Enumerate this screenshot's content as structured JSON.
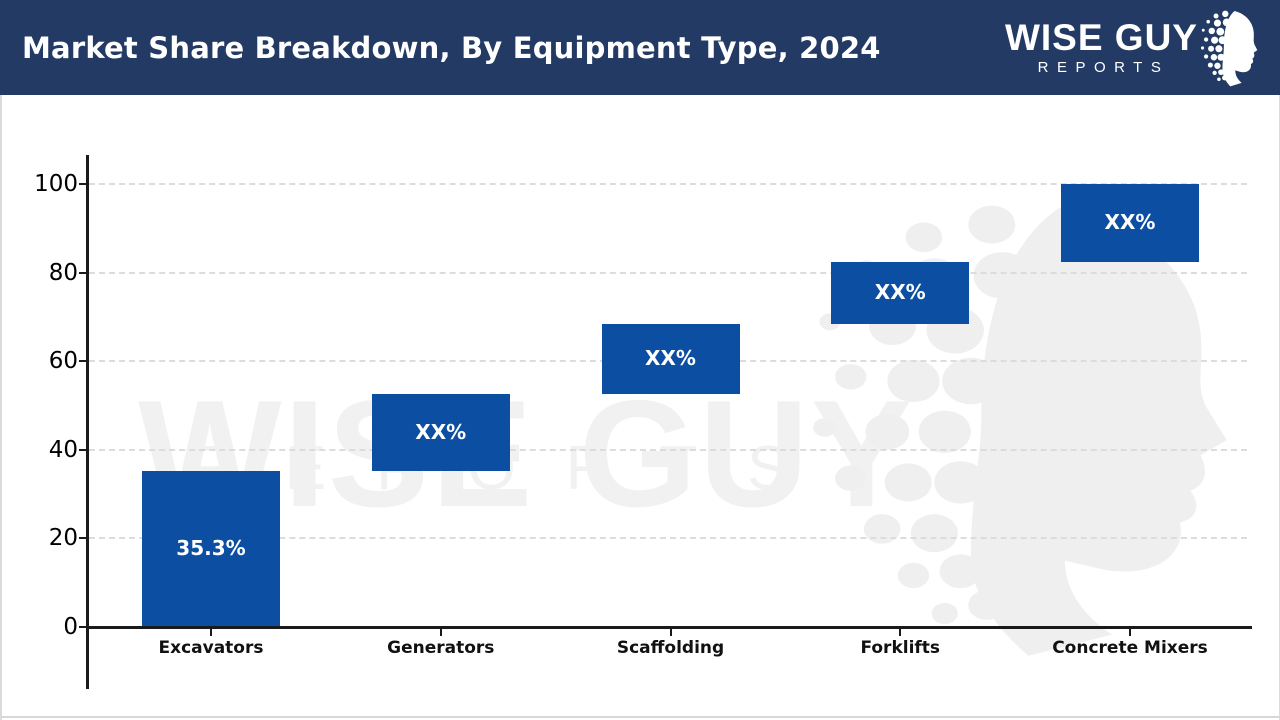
{
  "header": {
    "title": "Market Share Breakdown, By Equipment Type, 2024",
    "brand_line1": "WISE GUY",
    "brand_line2": "REPORTS",
    "bg_color": "#233a64"
  },
  "watermark": {
    "line1": "WISE GUY",
    "line2": "REPORTS",
    "head_icon": "dotted-head-profile"
  },
  "chart_data": {
    "type": "bar",
    "variant": "waterfall",
    "title": "Market Share Breakdown, By Equipment Type, 2024",
    "xlabel": "",
    "ylabel": "",
    "categories": [
      "Excavators",
      "Generators",
      "Scaffolding",
      "Forklifts",
      "Concrete Mixers"
    ],
    "series": [
      {
        "name": "Market share (%)",
        "segments": [
          {
            "category": "Excavators",
            "start": 0,
            "end": 35.3,
            "label": "35.3%"
          },
          {
            "category": "Generators",
            "start": 35.3,
            "end": 52.5,
            "label": "XX%"
          },
          {
            "category": "Scaffolding",
            "start": 52.5,
            "end": 68.5,
            "label": "XX%"
          },
          {
            "category": "Forklifts",
            "start": 68.5,
            "end": 82.5,
            "label": "XX%"
          },
          {
            "category": "Concrete Mixers",
            "start": 82.5,
            "end": 100,
            "label": "XX%"
          }
        ]
      }
    ],
    "ylim": [
      0,
      100
    ],
    "yticks": [
      0,
      20,
      40,
      60,
      80,
      100
    ],
    "grid": "horizontal-dashed",
    "legend": "none",
    "bar_color": "#0b4ea2",
    "bar_label_color": "#ffffff"
  }
}
